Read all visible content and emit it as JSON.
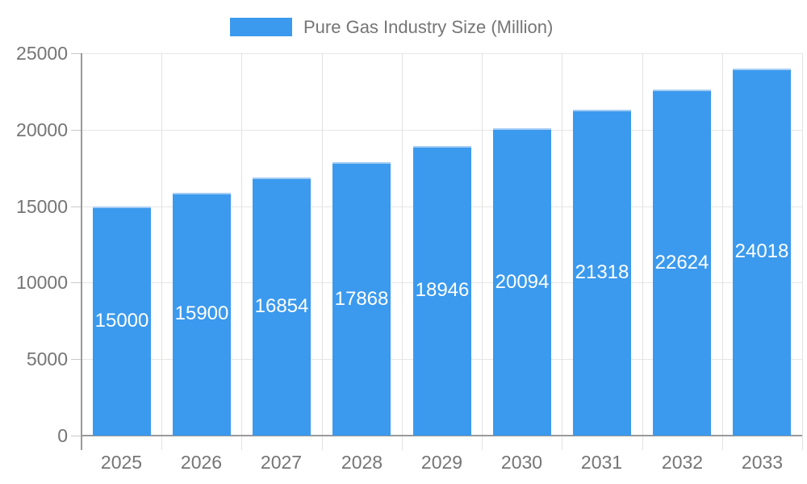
{
  "legend": {
    "label": "Pure Gas Industry Size (Million)"
  },
  "chart_data": {
    "type": "bar",
    "title": "Pure Gas Industry Size (Million)",
    "categories": [
      "2025",
      "2026",
      "2027",
      "2028",
      "2029",
      "2030",
      "2031",
      "2032",
      "2033"
    ],
    "series": [
      {
        "name": "Pure Gas Industry Size (Million)",
        "values": [
          15000,
          15900,
          16854,
          17868,
          18946,
          20094,
          21318,
          22624,
          24018
        ]
      }
    ],
    "xlabel": "",
    "ylabel": "",
    "ylim": [
      0,
      25000
    ],
    "yticks": [
      0,
      5000,
      10000,
      15000,
      20000,
      25000
    ],
    "grid": true,
    "legend_position": "top",
    "value_label_position": "inside-center"
  },
  "colors": {
    "bar": "#3b9aee",
    "bar_top_edge": "#a6cdf4",
    "grid_horizontal": "#e6e6e6",
    "grid_vertical": "#e2e2e2",
    "axis": "#9a9a9a",
    "tick": "#c8c8c8",
    "tick_text": "#757575",
    "value_text": "#ffffff",
    "background": "#ffffff"
  }
}
